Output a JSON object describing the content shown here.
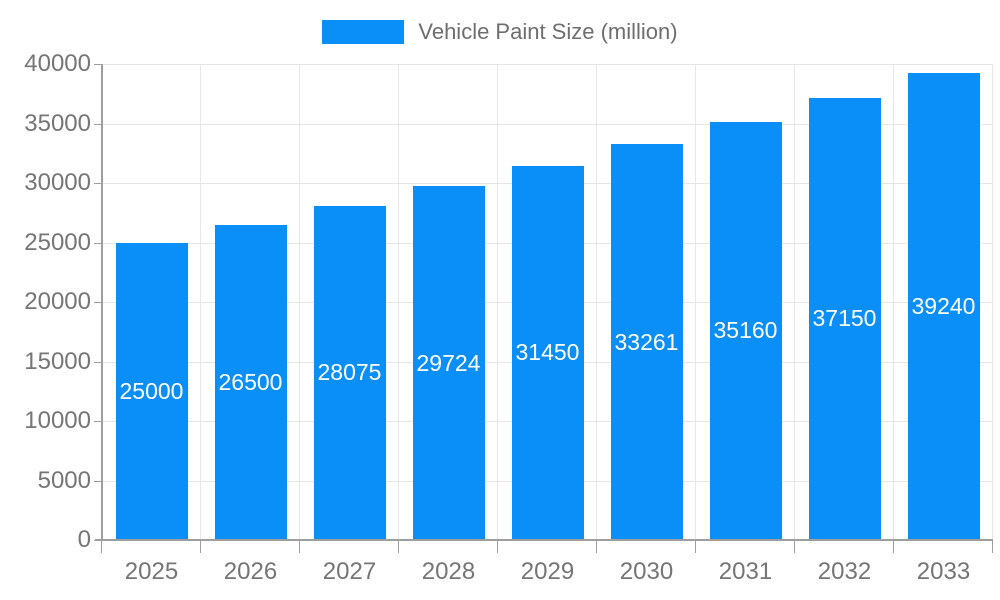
{
  "chart_data": {
    "type": "bar",
    "title": "",
    "categories": [
      "2025",
      "2026",
      "2027",
      "2028",
      "2029",
      "2030",
      "2031",
      "2032",
      "2033"
    ],
    "series": [
      {
        "name": "Vehicle Paint Size (million)",
        "values": [
          25000,
          26500,
          28075,
          29724,
          31450,
          33261,
          35160,
          37150,
          39240
        ]
      }
    ],
    "xlabel": "",
    "ylabel": "",
    "ylim": [
      0,
      40000
    ],
    "yticks": [
      0,
      5000,
      10000,
      15000,
      20000,
      25000,
      30000,
      35000,
      40000
    ],
    "grid": "both",
    "legend_position": "top",
    "data_labels": "inside-center-white"
  },
  "style": {
    "bar_color": "#0a8ff9",
    "grid_color": "#e6e6e6",
    "axis_color": "#9e9e9e",
    "tick_color": "#9e9e9e",
    "axis_label_color": "#757575",
    "legend_text_color": "#6e6e6e",
    "data_label_color": "#ffffff",
    "background_color": "#ffffff"
  }
}
